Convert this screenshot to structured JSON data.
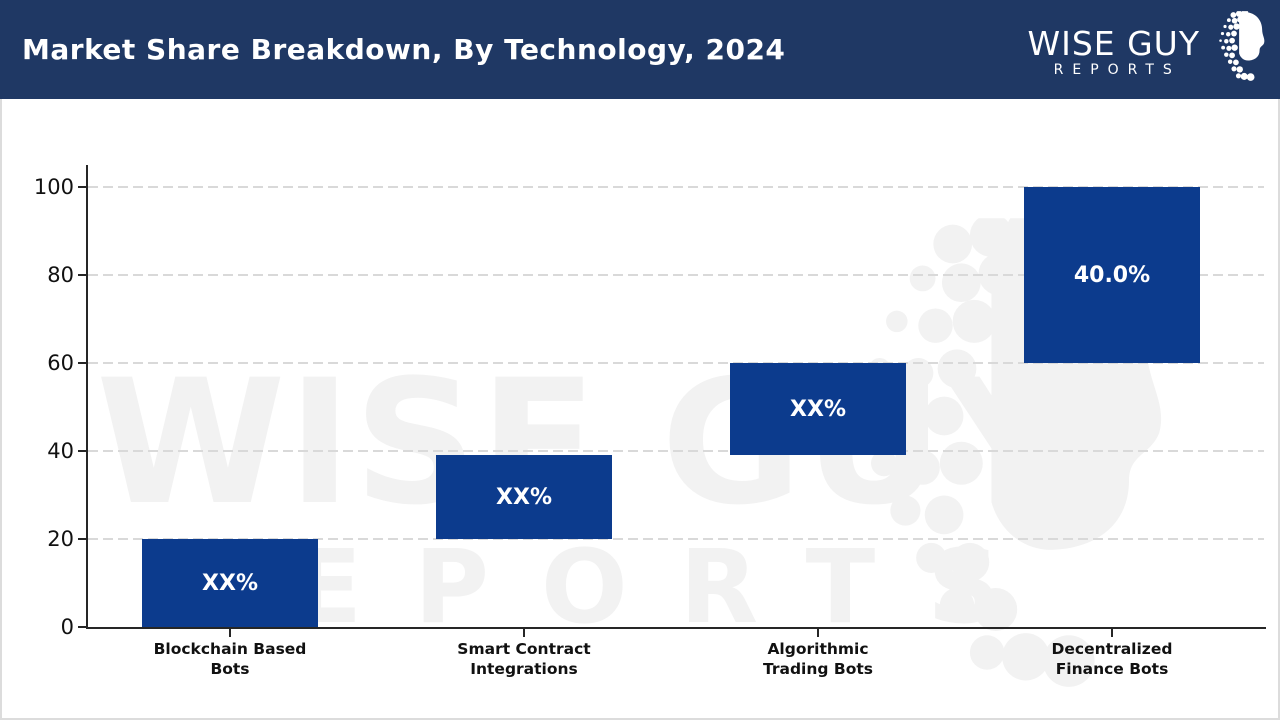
{
  "header": {
    "title": "Market Share Breakdown, By Technology, 2024",
    "logo": {
      "wordmark": "WISE GUY",
      "subtext": "REPORTS"
    }
  },
  "watermark": {
    "wordmark": "WISE GUY",
    "subtext": "REPORTS"
  },
  "chart_data": {
    "type": "bar",
    "subtype": "floating-segment-waterfall",
    "title": "Market Share Breakdown, By Technology, 2024",
    "categories": [
      "Blockchain Based\nBots",
      "Smart Contract\nIntegrations",
      "Algorithmic\nTrading Bots",
      "Decentralized\nFinance Bots"
    ],
    "series": [
      {
        "name": "Market Share %",
        "segments": [
          {
            "category": "Blockchain Based Bots",
            "from": 0,
            "to": 20,
            "label": "XX%"
          },
          {
            "category": "Smart Contract Integrations",
            "from": 20,
            "to": 39,
            "label": "XX%"
          },
          {
            "category": "Algorithmic Trading Bots",
            "from": 39,
            "to": 60,
            "label": "XX%"
          },
          {
            "category": "Decentralized Finance Bots",
            "from": 60,
            "to": 100,
            "label": "40.0%"
          }
        ]
      }
    ],
    "yticks": [
      0,
      20,
      40,
      60,
      80,
      100
    ],
    "ylim": [
      0,
      105
    ],
    "xlabel": "",
    "ylabel": "",
    "grid": "horizontal-dashed",
    "legend": "none",
    "bar_color": "#0c3b8d",
    "bar_label_color": "#ffffff",
    "axis_color": "#262626",
    "gridline_color": "#d9d9d9"
  },
  "colors": {
    "header_bg": "#1f3864",
    "header_text": "#ffffff",
    "page_bg": "#ffffff",
    "watermark": "#f2f2f2",
    "tick_text": "#111111",
    "frame_border": "#dcdcdc"
  }
}
